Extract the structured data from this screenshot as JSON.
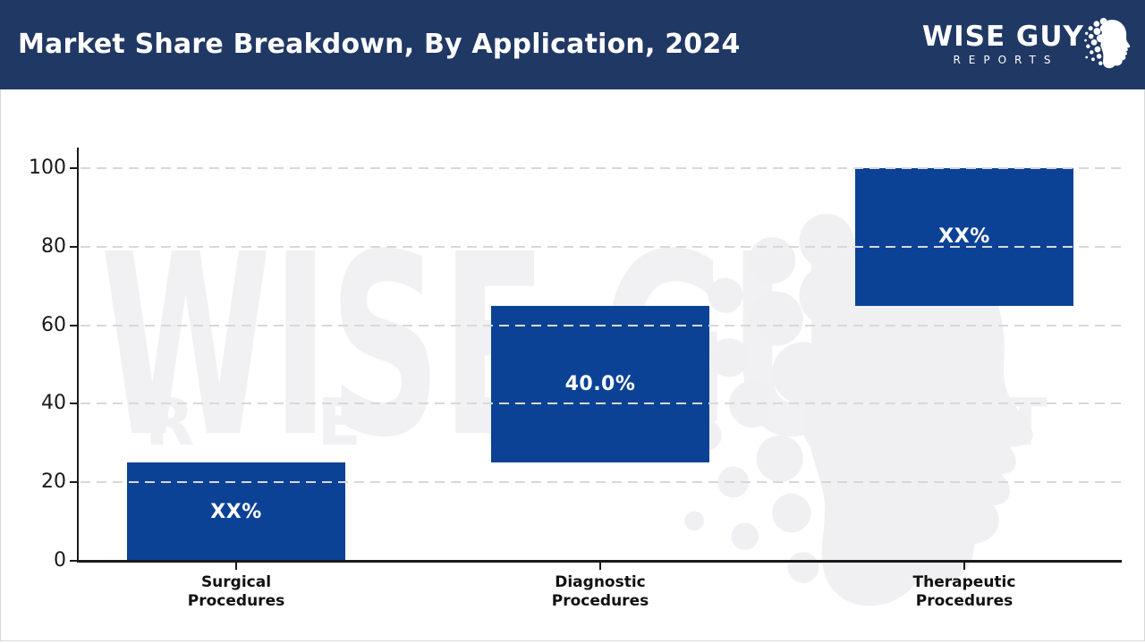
{
  "header": {
    "title": "Market Share Breakdown, By Application, 2024",
    "brand": {
      "name": "WISE GUY",
      "sub": "REPORTS"
    }
  },
  "watermark": {
    "name": "WISE GUY",
    "sub": "R E P O R T S"
  },
  "chart_data": {
    "type": "bar",
    "subtype": "floating-waterfall",
    "title": "Market Share Breakdown, By Application, 2024",
    "categories": [
      {
        "line1": "Surgical",
        "line2": "Procedures"
      },
      {
        "line1": "Diagnostic",
        "line2": "Procedures"
      },
      {
        "line1": "Therapeutic",
        "line2": "Procedures"
      }
    ],
    "series": [
      {
        "category": "Surgical Procedures",
        "start": 0,
        "end": 25,
        "label": "XX%"
      },
      {
        "category": "Diagnostic Procedures",
        "start": 25,
        "end": 65,
        "label": "40.0%"
      },
      {
        "category": "Therapeutic Procedures",
        "start": 65,
        "end": 100,
        "label": "XX%"
      }
    ],
    "xlabel": "",
    "ylabel": "",
    "yticks": [
      0,
      20,
      40,
      60,
      80,
      100
    ],
    "ylim": [
      0,
      105
    ],
    "grid": "horizontal-dashed",
    "legend": "none",
    "colors": {
      "bar": "#0b4296",
      "header_bg": "#203864",
      "grid": "#d8d8d8",
      "axis": "#1a1a1a",
      "watermark": "#f1f1f4"
    }
  }
}
